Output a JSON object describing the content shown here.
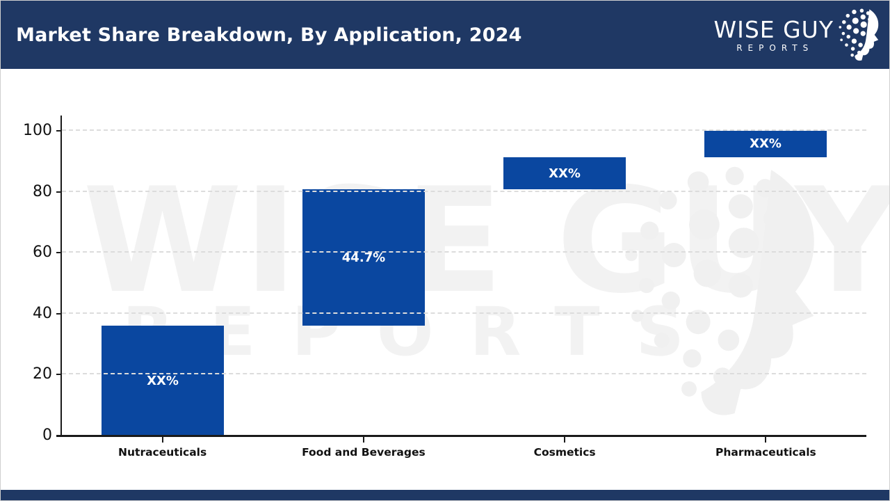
{
  "header": {
    "title": "Market Share Breakdown, By Application, 2024",
    "logo": {
      "line1": "WISE GUY",
      "line2": "REPORTS"
    }
  },
  "watermark": {
    "line1": "WISE GUY",
    "line2": "REPORTS"
  },
  "colors": {
    "header_bg": "#1f3864",
    "footer_bg": "#1f3864",
    "bar": "#0a47a0",
    "bar_label": "#ffffff",
    "grid": "#dcdcdc",
    "axis": "#1a1a1a",
    "watermark": "#f2f2f2"
  },
  "chart_data": {
    "type": "bar",
    "subtype": "waterfall-breakdown",
    "title": "Market Share Breakdown, By Application, 2024",
    "categories": [
      "Nutraceuticals",
      "Food and Beverages",
      "Cosmetics",
      "Pharmaceuticals"
    ],
    "segments": [
      {
        "category": "Nutraceuticals",
        "start": 0,
        "end": 36,
        "value": 36,
        "label": "XX%"
      },
      {
        "category": "Food and Beverages",
        "start": 36,
        "end": 80.7,
        "value": 44.7,
        "label": "44.7%"
      },
      {
        "category": "Cosmetics",
        "start": 80.7,
        "end": 91.4,
        "value": 10.7,
        "label": "XX%"
      },
      {
        "category": "Pharmaceuticals",
        "start": 91.4,
        "end": 100,
        "value": 8.6,
        "label": "XX%"
      }
    ],
    "yticks": [
      0,
      20,
      40,
      60,
      80,
      100
    ],
    "ylim": [
      0,
      105
    ],
    "xlabel": "",
    "ylabel": "",
    "grid": "horizontal-dashed",
    "legend": "none"
  }
}
